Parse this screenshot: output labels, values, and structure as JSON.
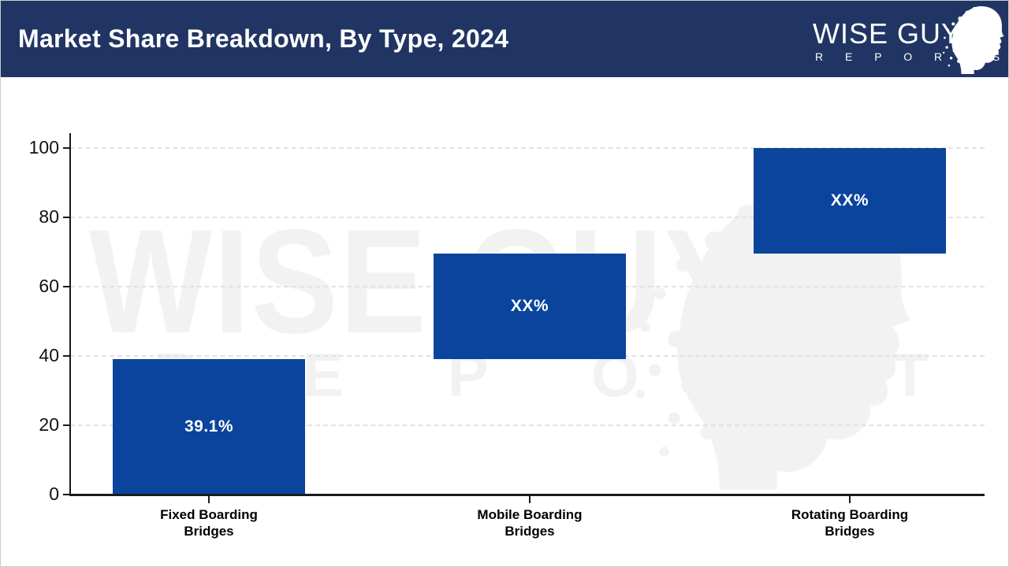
{
  "header": {
    "title": "Market Share Breakdown, By Type, 2024",
    "logo": {
      "name_line": "WISE GUY",
      "reports_line": "R E P O R T S"
    }
  },
  "watermark": {
    "name_line": "WISE GUY",
    "reports_line": "R E P O R T S"
  },
  "colors": {
    "header_bg": "#213564",
    "bar": "#0a449c",
    "grid": "#e2e2e2",
    "axis": "#1a1a1a",
    "watermark": "#f2f2f2",
    "label_on_bar": "#ffffff"
  },
  "chart_data": {
    "type": "bar",
    "variant": "floating-cumulative-percentage-bars",
    "title": "Market Share Breakdown, By Type, 2024",
    "categories": [
      "Fixed Boarding Bridges",
      "Mobile Boarding Bridges",
      "Rotating Boarding Bridges"
    ],
    "category_lines": [
      [
        "Fixed Boarding",
        "Bridges"
      ],
      [
        "Mobile Boarding",
        "Bridges"
      ],
      [
        "Rotating Boarding",
        "Bridges"
      ]
    ],
    "bars": [
      {
        "label": "39.1%",
        "start": 0,
        "end": 39.1
      },
      {
        "label": "XX%",
        "start": 39.1,
        "end": 69.5
      },
      {
        "label": "XX%",
        "start": 69.6,
        "end": 100
      }
    ],
    "ylim": [
      0,
      100
    ],
    "yticks": [
      0,
      20,
      40,
      60,
      80,
      100
    ],
    "xlabel": "",
    "ylabel": "",
    "grid": "horizontal-dashed",
    "legend": "none"
  }
}
